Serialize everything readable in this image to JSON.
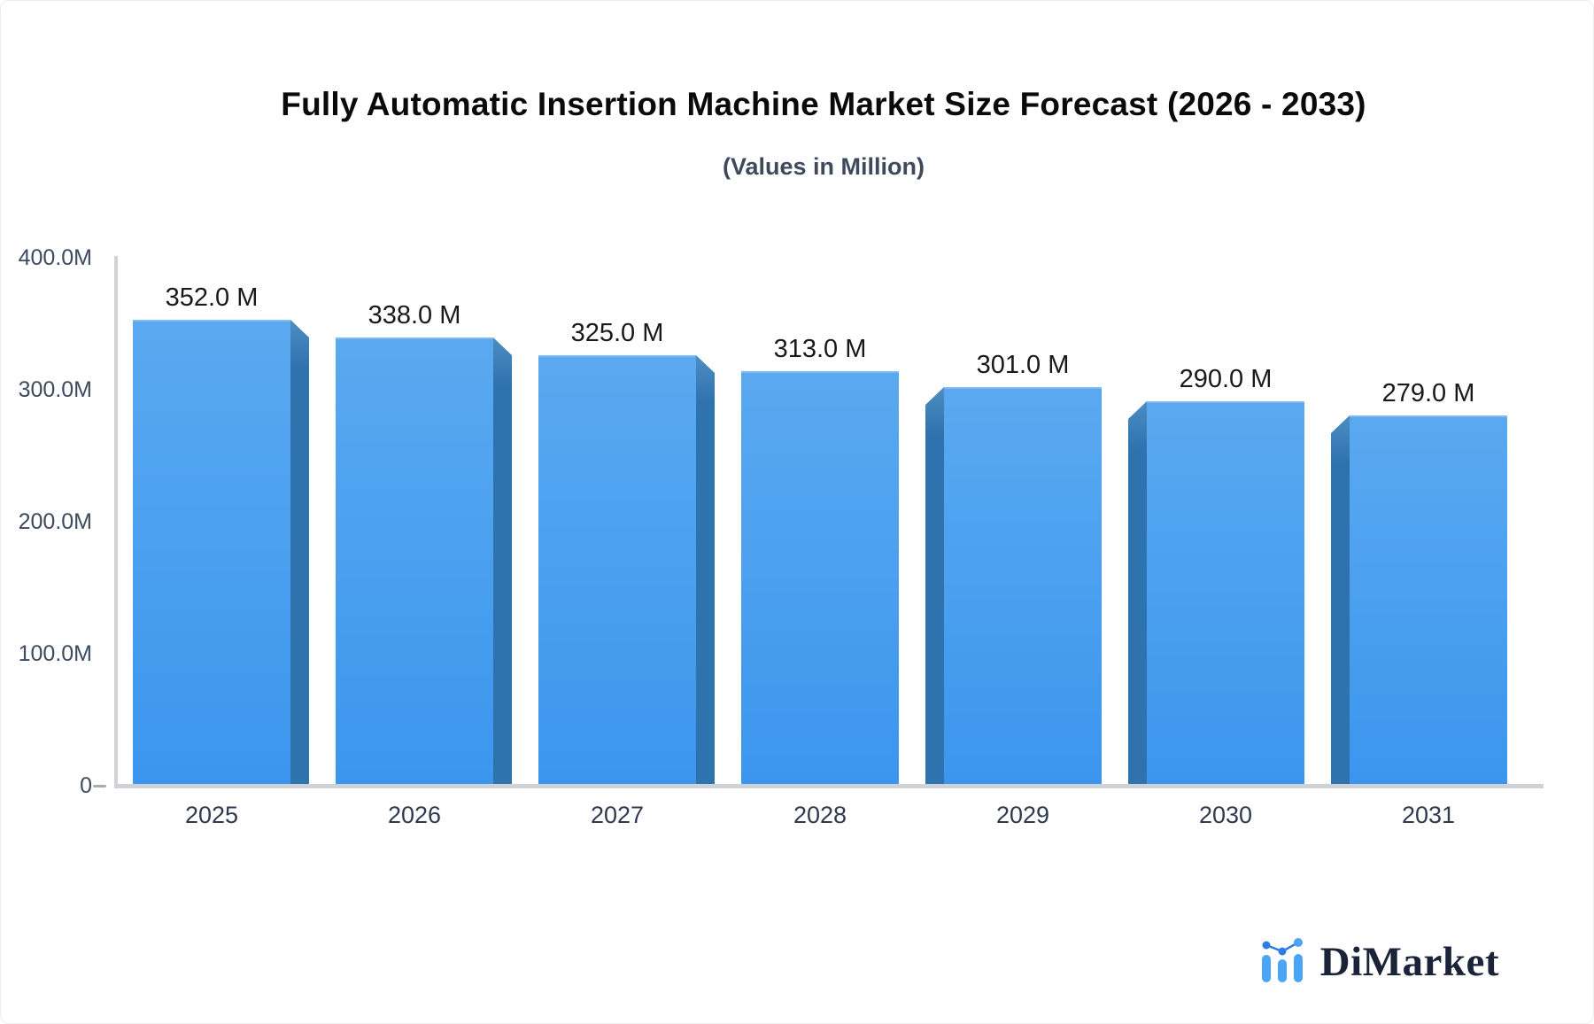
{
  "chart_data": {
    "type": "bar",
    "title": "Fully Automatic Insertion Machine Market Size Forecast (2026 - 2033)",
    "subtitle": "(Values in Million)",
    "categories": [
      "2025",
      "2026",
      "2027",
      "2028",
      "2029",
      "2030",
      "2031"
    ],
    "values": [
      352,
      338,
      325,
      313,
      301,
      290,
      279
    ],
    "value_labels": [
      "352.0 M",
      "338.0 M",
      "325.0 M",
      "313.0 M",
      "301.0 M",
      "290.0 M",
      "279.0 M"
    ],
    "ylim": [
      0,
      400
    ],
    "yticks": [
      {
        "value": 0,
        "label": "0"
      },
      {
        "value": 100,
        "label": "100.0M"
      },
      {
        "value": 200,
        "label": "200.0M"
      },
      {
        "value": 300,
        "label": "300.0M"
      },
      {
        "value": 400,
        "label": "400.0M"
      }
    ],
    "grid": false,
    "legend": "none",
    "xlabel": "",
    "ylabel": "",
    "colors": {
      "bar_face_top": "#5aa9f0",
      "bar_face_bottom": "#3b96ee",
      "bar_bevel_dark": "#2e72ae",
      "bar_bevel_light": "#4d8dc1",
      "axis": "#cfd3d8",
      "tick_dash": "#a7abb2",
      "ytick_text": "#3d4a5f",
      "xtick_text": "#2e3950",
      "value_text": "#191919"
    }
  },
  "logo": {
    "text": "DiMarket",
    "icon": "dimarket-bar-chart-icon",
    "text_color": "#1a2337",
    "icon_bar_color": "#4ba5f7",
    "icon_line_color": "#2f7de2"
  }
}
